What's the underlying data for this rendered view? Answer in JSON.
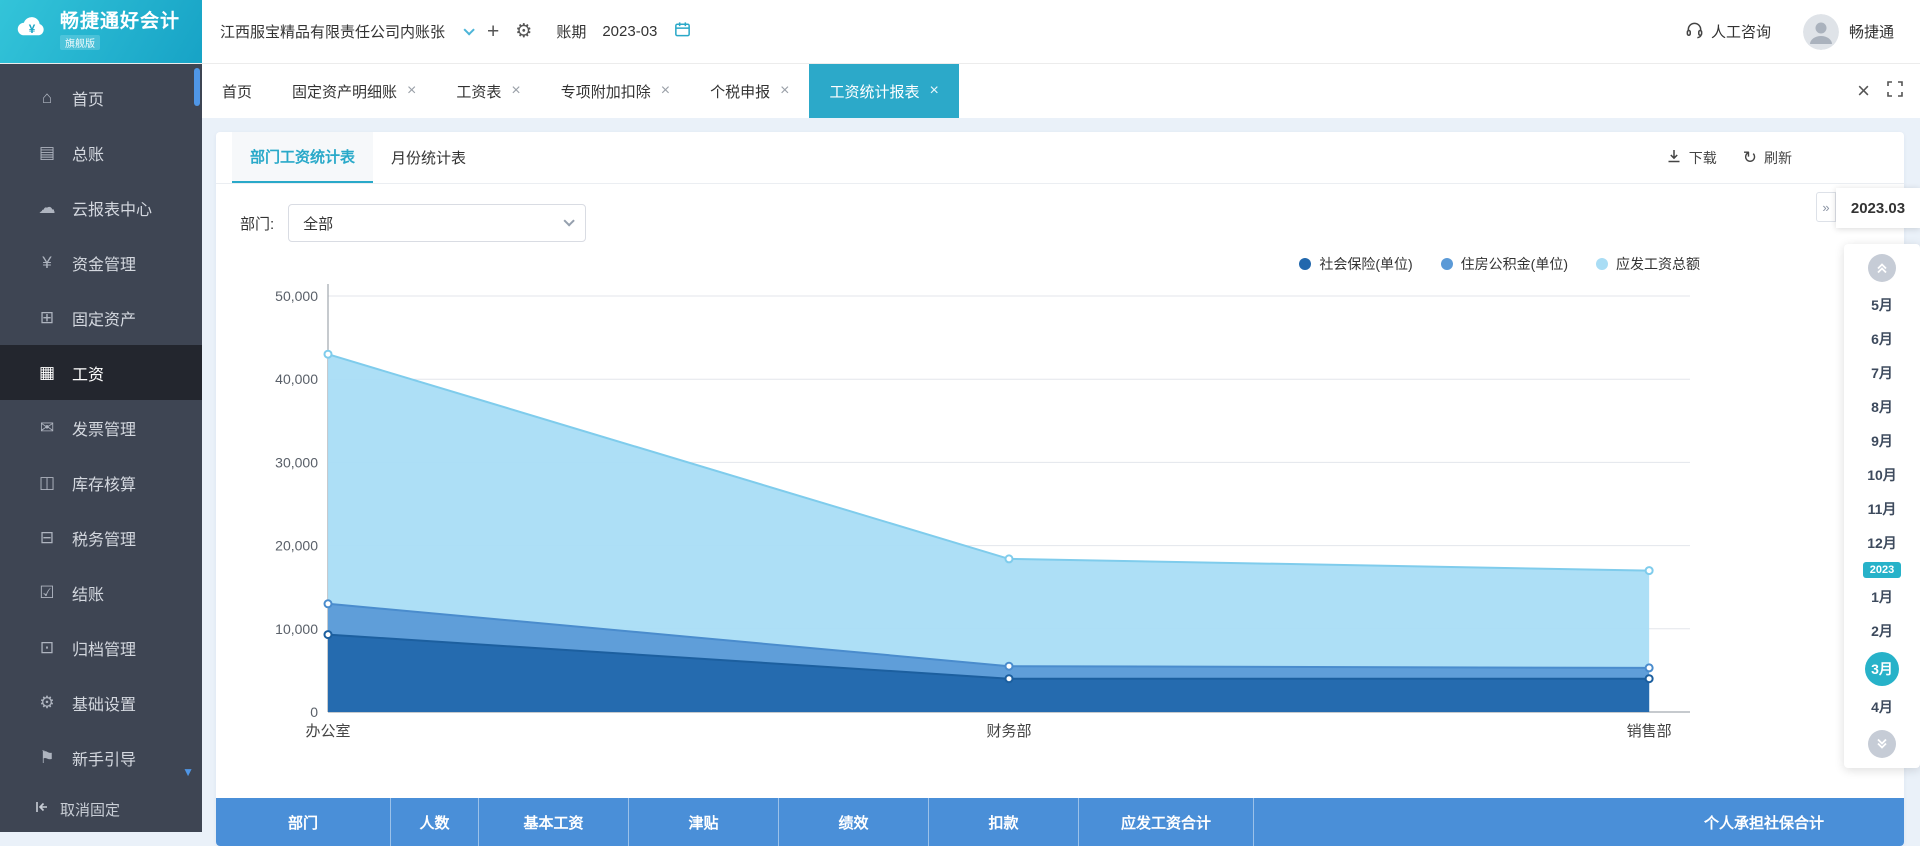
{
  "topbar": {
    "logo_title": "畅捷通好会计",
    "logo_subtitle": "旗舰版",
    "company": "江西服宝精品有限责任公司内账张",
    "period_label": "账期",
    "period_value": "2023-03",
    "support_label": "人工咨询",
    "user_name": "畅捷通"
  },
  "sidebar": {
    "items": [
      {
        "id": "home",
        "label": "首页",
        "glyph": "⌂"
      },
      {
        "id": "general-ledger",
        "label": "总账",
        "glyph": "▤"
      },
      {
        "id": "cloud-reports",
        "label": "云报表中心",
        "glyph": "☁"
      },
      {
        "id": "funds",
        "label": "资金管理",
        "glyph": "¥"
      },
      {
        "id": "fixed-assets",
        "label": "固定资产",
        "glyph": "⊞"
      },
      {
        "id": "salary",
        "label": "工资",
        "glyph": "▦",
        "active": true
      },
      {
        "id": "invoices",
        "label": "发票管理",
        "glyph": "✉"
      },
      {
        "id": "inventory",
        "label": "库存核算",
        "glyph": "◫"
      },
      {
        "id": "tax",
        "label": "税务管理",
        "glyph": "⊟"
      },
      {
        "id": "closing",
        "label": "结账",
        "glyph": "☑"
      },
      {
        "id": "archive",
        "label": "归档管理",
        "glyph": "⊡"
      },
      {
        "id": "settings",
        "label": "基础设置",
        "glyph": "⚙"
      },
      {
        "id": "guide",
        "label": "新手引导",
        "glyph": "⚑"
      }
    ],
    "pin_label": "取消固定"
  },
  "tabs": [
    {
      "label": "首页",
      "closable": false
    },
    {
      "label": "固定资产明细账",
      "closable": true
    },
    {
      "label": "工资表",
      "closable": true
    },
    {
      "label": "专项附加扣除",
      "closable": true
    },
    {
      "label": "个税申报",
      "closable": true
    },
    {
      "label": "工资统计报表",
      "closable": true,
      "active": true
    }
  ],
  "content": {
    "subtabs": [
      {
        "label": "部门工资统计表",
        "active": true
      },
      {
        "label": "月份统计表"
      }
    ],
    "download_label": "下载",
    "refresh_label": "刷新",
    "filter_label": "部门:",
    "filter_value": "全部"
  },
  "chart_data": {
    "type": "area",
    "title": "",
    "categories": [
      "办公室",
      "财务部",
      "销售部"
    ],
    "series": [
      {
        "name": "社会保险(单位)",
        "values": [
          9300,
          4000,
          4000
        ],
        "color": "#2268ad",
        "line": "#1c5f9f"
      },
      {
        "name": "住房公积金(单位)",
        "values": [
          13000,
          5500,
          5300
        ],
        "color": "#5b9ad7",
        "line": "#4a8ccd"
      },
      {
        "name": "应发工资总额",
        "values": [
          43000,
          18400,
          17000
        ],
        "color": "#a9ddf5",
        "line": "#7fccec"
      }
    ],
    "ylim": [
      0,
      50000
    ],
    "ytick_step": 10000,
    "grid": true,
    "legend_position": "top-right"
  },
  "table": {
    "columns": [
      "部门",
      "人数",
      "基本工资",
      "津贴",
      "绩效",
      "扣款",
      "应发工资合计",
      "个人承担社保合计"
    ]
  },
  "month_panel": {
    "current": "2023.03",
    "items": [
      {
        "label": "5月"
      },
      {
        "label": "6月"
      },
      {
        "label": "7月"
      },
      {
        "label": "8月"
      },
      {
        "label": "9月"
      },
      {
        "label": "10月"
      },
      {
        "label": "11月"
      },
      {
        "label": "12月"
      },
      {
        "label": "2023",
        "badge": true
      },
      {
        "label": "1月"
      },
      {
        "label": "2月"
      },
      {
        "label": "3月",
        "active": true
      },
      {
        "label": "4月"
      }
    ]
  }
}
